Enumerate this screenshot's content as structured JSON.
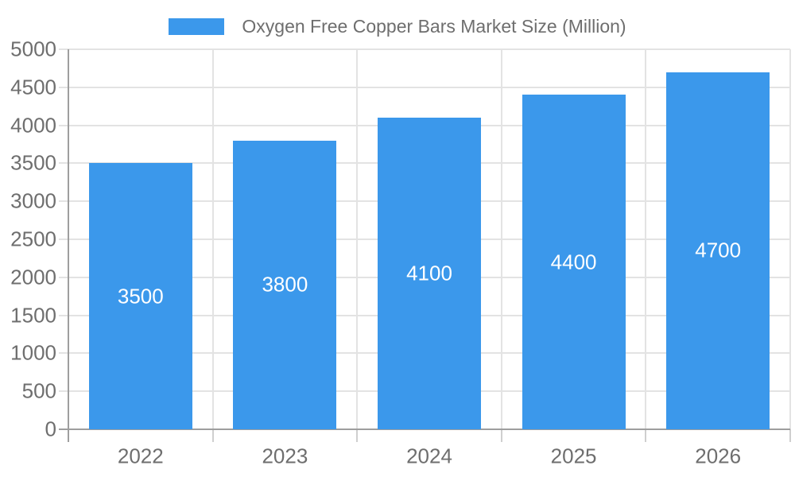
{
  "legend": {
    "swatch_color": "#3B98EB"
  },
  "chart_data": {
    "type": "bar",
    "title": "Oxygen Free Copper Bars Market Size (Million)",
    "categories": [
      "2022",
      "2023",
      "2024",
      "2025",
      "2026"
    ],
    "series": [
      {
        "name": "Oxygen Free Copper Bars Market Size (Million)",
        "values": [
          3500,
          3800,
          4100,
          4400,
          4700
        ]
      }
    ],
    "bar_labels": [
      "3500",
      "3800",
      "4100",
      "4400",
      "4700"
    ],
    "xlabel": "",
    "ylabel": "",
    "ylim": [
      0,
      5000
    ],
    "ytick_step": 500,
    "ytick_labels": [
      "0",
      "500",
      "1000",
      "1500",
      "2000",
      "2500",
      "3000",
      "3500",
      "4000",
      "4500",
      "5000"
    ],
    "grid": true,
    "legend_position": "top",
    "colors": {
      "bar": "#3B98EB",
      "gridline": "#e3e3e3",
      "minor_tick": "#cfcfcf",
      "axis_line": "#9e9e9e",
      "axis_text": "#6e6e6e",
      "bar_label_text": "#ffffff"
    }
  }
}
